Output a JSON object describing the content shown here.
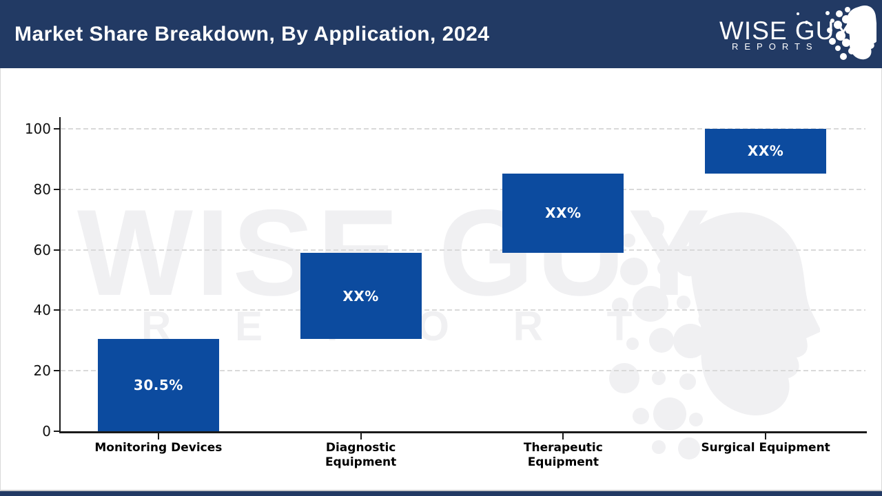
{
  "header": {
    "title": "Market Share Breakdown, By Application, 2024",
    "bg_color": "#223a64",
    "logo": {
      "line1": "WISE GUY",
      "line2": "REPORTS"
    }
  },
  "watermark": {
    "line1": "WISE GUY",
    "line2": "R E P O R T S"
  },
  "chart_data": {
    "type": "bar",
    "subtype": "waterfall",
    "title": "Market Share Breakdown, By Application, 2024",
    "categories": [
      "Monitoring Devices",
      "Diagnostic Equipment",
      "Therapeutic Equipment",
      "Surgical Equipment"
    ],
    "categories_display": [
      "Monitoring Devices",
      "Diagnostic\nEquipment",
      "Therapeutic\nEquipment",
      "Surgical Equipment"
    ],
    "segments": [
      {
        "category": "Monitoring Devices",
        "start": 0,
        "end": 30.5,
        "label": "30.5%"
      },
      {
        "category": "Diagnostic Equipment",
        "start": 30.5,
        "end": 59,
        "label": "XX%"
      },
      {
        "category": "Therapeutic Equipment",
        "start": 59,
        "end": 85.3,
        "label": "XX%"
      },
      {
        "category": "Surgical Equipment",
        "start": 85.3,
        "end": 100,
        "label": "XX%"
      }
    ],
    "yticks": [
      0,
      20,
      40,
      60,
      80,
      100
    ],
    "ylim": [
      0,
      104
    ],
    "xlabel": "",
    "ylabel": "",
    "bar_color": "#0c4b9f",
    "label_color": "#ffffff",
    "grid": "horizontal-dashed",
    "legend": "none"
  }
}
